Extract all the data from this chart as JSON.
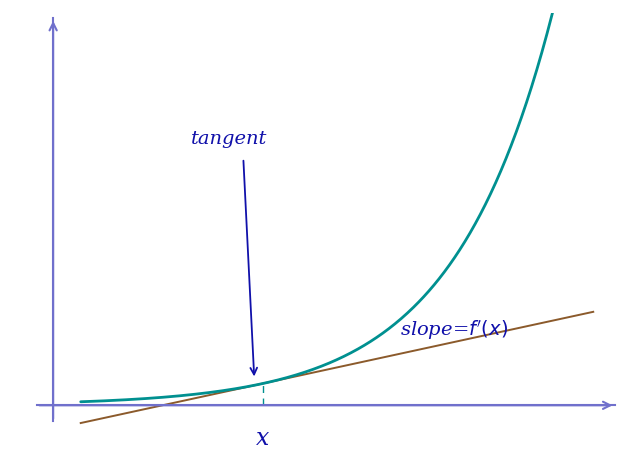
{
  "background_color": "#ffffff",
  "curve_color": "#009090",
  "tangent_color": "#8B5A2B",
  "axis_color": "#7070cc",
  "annotation_color": "#1010aa",
  "dashed_color": "#009090",
  "x_label": "x",
  "tangent_label": "tangent",
  "curve_lw": 2.0,
  "tangent_lw": 1.4,
  "axis_lw": 1.5,
  "figsize": [
    6.4,
    4.56
  ],
  "dpi": 100
}
